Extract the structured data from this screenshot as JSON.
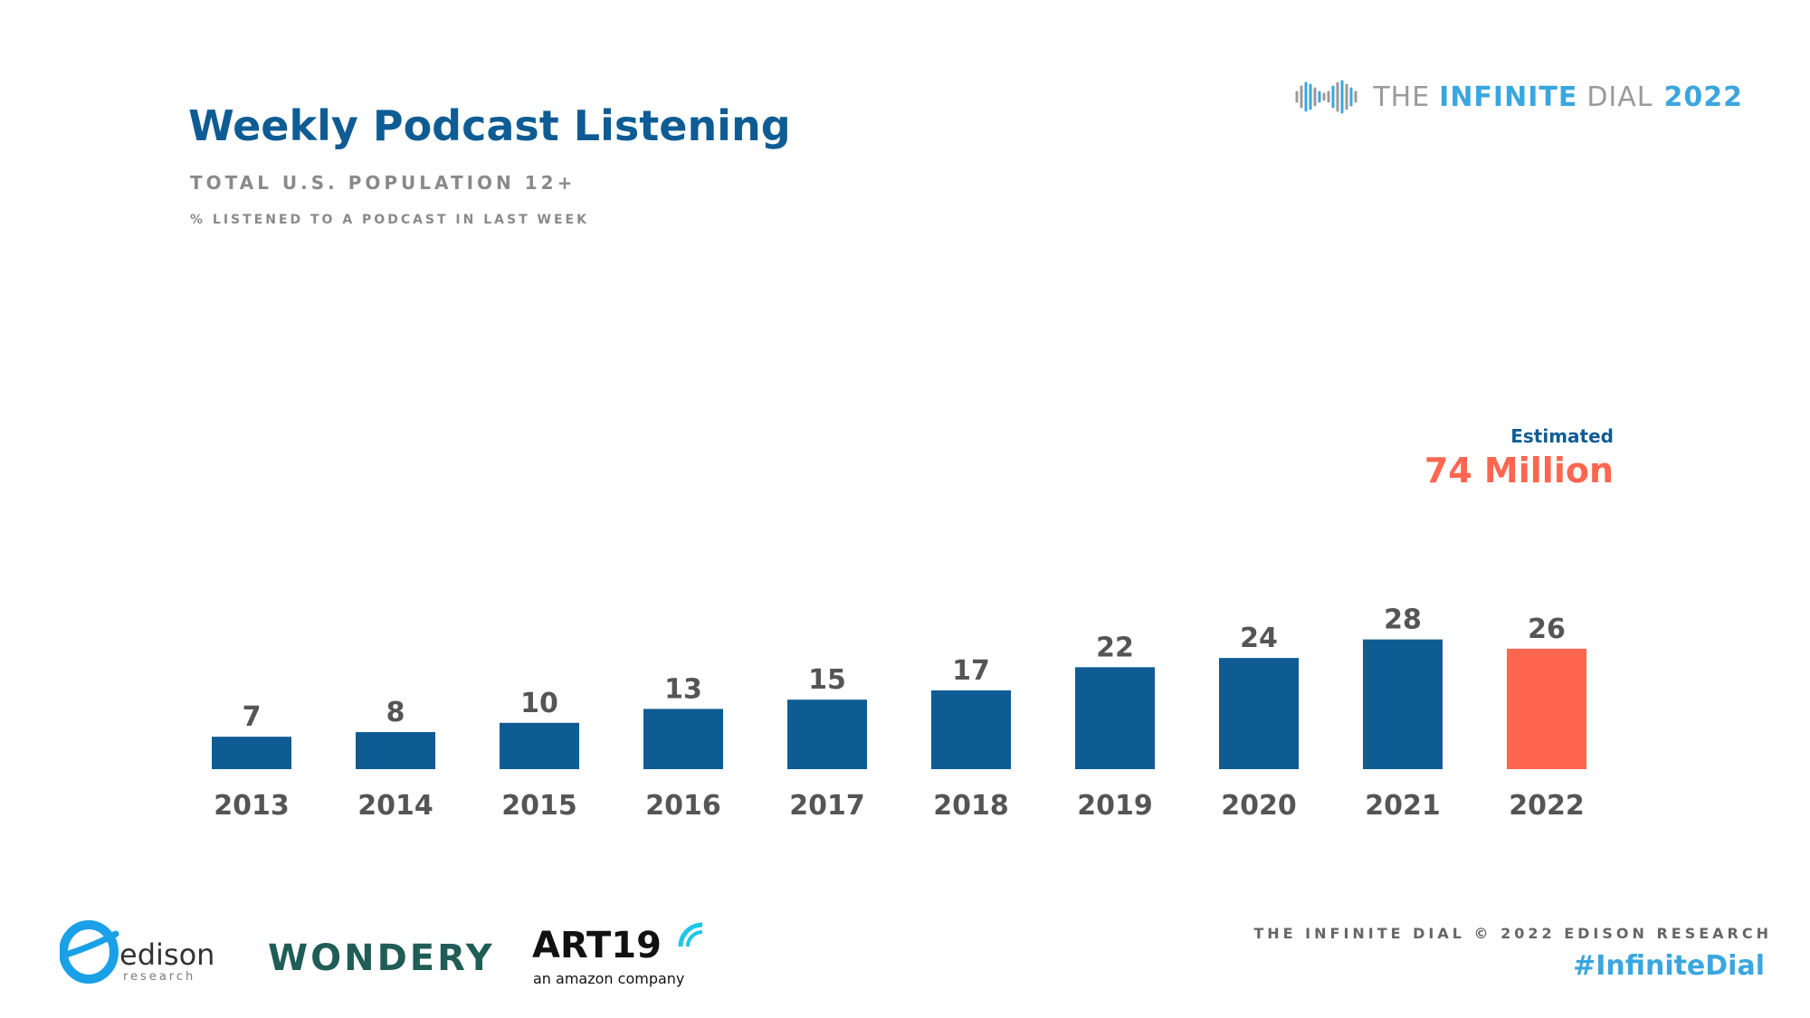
{
  "header": {
    "title": "Weekly Podcast Listening",
    "subtitle": "TOTAL U.S. POPULATION 12+",
    "measure": "% LISTENED TO A PODCAST IN LAST WEEK"
  },
  "brand": {
    "the": "THE",
    "infinite": "INFINITE",
    "dial": "DIAL",
    "year": "2022",
    "icon": "infinity-waveform-icon"
  },
  "callout": {
    "small": "Estimated",
    "big": "74 Million"
  },
  "colors": {
    "bar": "#0f5c94",
    "highlight": "#ff6650",
    "accent": "#3aa6df"
  },
  "chart_data": {
    "type": "bar",
    "title": "Weekly Podcast Listening",
    "categories": [
      "2013",
      "2014",
      "2015",
      "2016",
      "2017",
      "2018",
      "2019",
      "2020",
      "2021",
      "2022"
    ],
    "values": [
      7,
      8,
      10,
      13,
      15,
      17,
      22,
      24,
      28,
      26
    ],
    "highlight_index": 9,
    "xlabel": "",
    "ylabel": "",
    "grid": false,
    "data_labels": true,
    "legend": "none"
  },
  "footer": {
    "edison": "edison",
    "edison_sub": "research",
    "wondery": "WONDERY",
    "art19": "ART19",
    "art19_sub": "an amazon company",
    "credit": "THE INFINITE DIAL   © 2022 EDISON RESEARCH",
    "hashtag": "#InfiniteDial"
  }
}
